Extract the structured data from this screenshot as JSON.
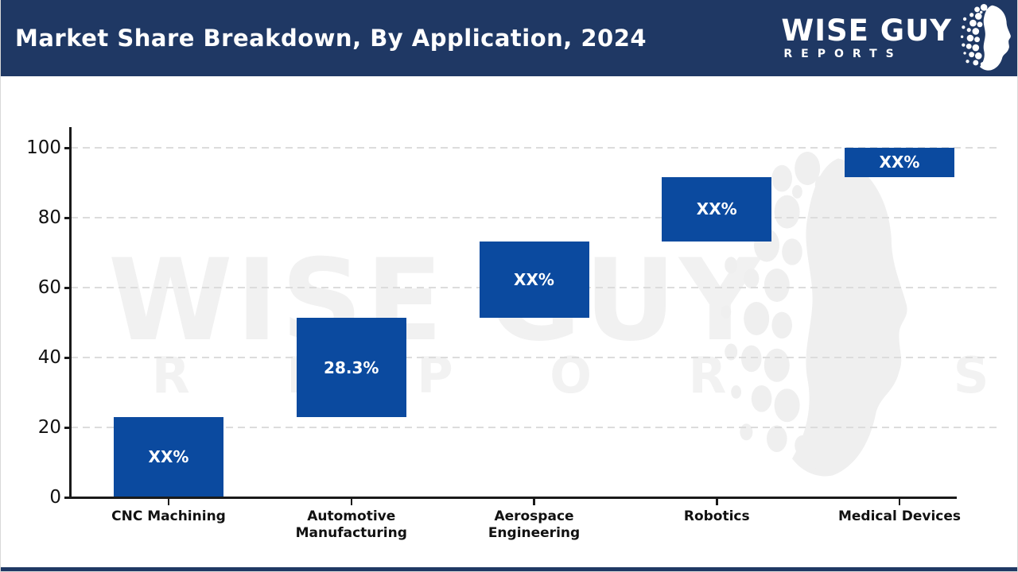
{
  "header": {
    "title": "Market Share Breakdown, By Application, 2024",
    "bg_color": "#1f3864",
    "logo": {
      "line1": "WISE GUY",
      "line2": "REPORTS"
    }
  },
  "watermark": {
    "line1": "WISE GUY",
    "line2": "R E P O R T S"
  },
  "chart_data": {
    "type": "bar",
    "subtype": "waterfall",
    "title": "Market Share Breakdown, By Application, 2024",
    "categories": [
      "CNC Machining",
      "Automotive Manufacturing",
      "Aerospace Engineering",
      "Robotics",
      "Medical Devices"
    ],
    "segments": [
      {
        "category": "CNC Machining",
        "start": 0,
        "end": 23,
        "label": "XX%"
      },
      {
        "category": "Automotive Manufacturing",
        "start": 23,
        "end": 51.3,
        "label": "28.3%"
      },
      {
        "category": "Aerospace Engineering",
        "start": 51.3,
        "end": 73.2,
        "label": "XX%"
      },
      {
        "category": "Robotics",
        "start": 73.2,
        "end": 91.6,
        "label": "XX%"
      },
      {
        "category": "Medical Devices",
        "start": 91.6,
        "end": 100,
        "label": "XX%"
      }
    ],
    "ylim": [
      0,
      100
    ],
    "yticks": [
      0,
      20,
      40,
      60,
      80,
      100
    ],
    "xlabel": "",
    "ylabel": "",
    "grid": "horizontal dashed",
    "legend": "none",
    "bar_color": "#0b4a9f",
    "bar_label_color": "#ffffff",
    "axis_color": "#1a1a1a"
  }
}
